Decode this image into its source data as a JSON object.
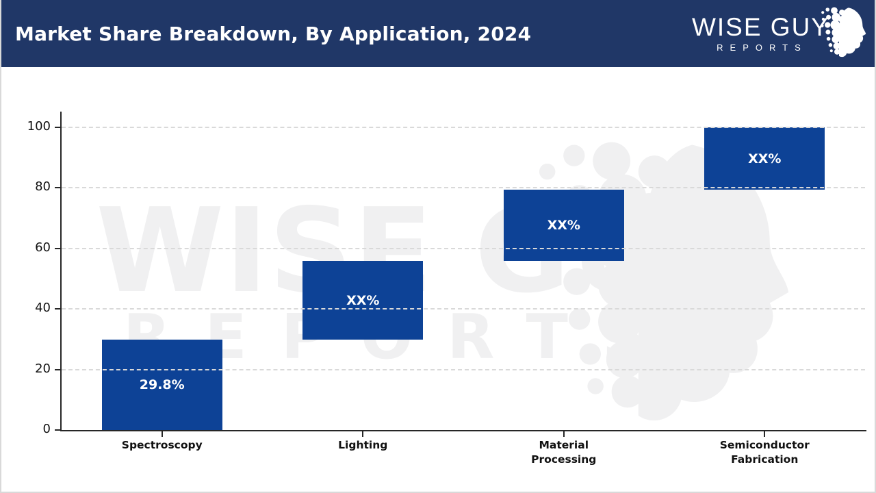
{
  "header": {
    "title": "Market Share Breakdown, By Application, 2024"
  },
  "logo": {
    "brand_top": "WISE GUY",
    "brand_bottom": "REPORTS",
    "head_icon": "dotted-head-profile"
  },
  "watermark": {
    "brand_top": "WISE GUY",
    "brand_bottom": "REPORTS",
    "head_icon": "dotted-head-profile"
  },
  "chart_data": {
    "type": "bar",
    "subtype": "waterfall",
    "title": "Market Share Breakdown, By Application, 2024",
    "unit": "%",
    "categories": [
      "Spectroscopy",
      "Lighting",
      "Material\nProcessing",
      "Semiconductor\nFabrication"
    ],
    "segments": [
      {
        "category": "Spectroscopy",
        "start": 0,
        "end": 29.8,
        "label": "29.8%"
      },
      {
        "category": "Lighting",
        "start": 29.8,
        "end": 55.8,
        "label": "XX%"
      },
      {
        "category": "Material Processing",
        "start": 55.8,
        "end": 79.3,
        "label": "XX%"
      },
      {
        "category": "Semiconductor Fabrication",
        "start": 79.3,
        "end": 100,
        "label": "XX%"
      }
    ],
    "yticks": [
      0,
      20,
      40,
      60,
      80,
      100
    ],
    "ylim": [
      0,
      105.2
    ],
    "grid": true,
    "grid_style": "dashed",
    "legend": null,
    "colors": {
      "bar": "#0d4296",
      "bar_label": "#ffffff",
      "grid": "#d9d9d9",
      "axis": "#262626",
      "tick_label": "#111111",
      "header_bg": "#203767",
      "watermark": "#f0f0f1"
    }
  }
}
